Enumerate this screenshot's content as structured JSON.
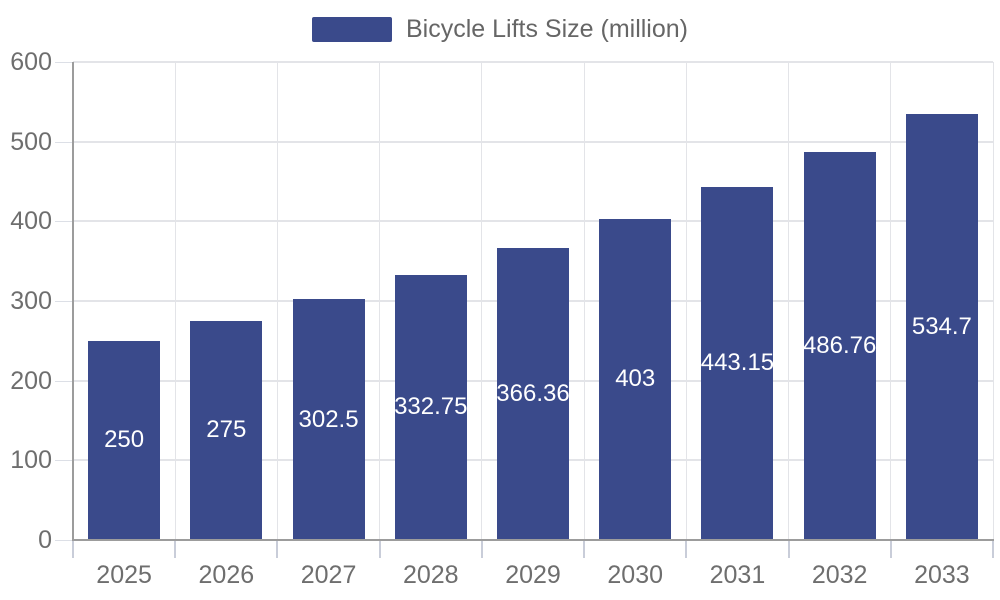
{
  "legend": {
    "label": "Bicycle Lifts Size (million)"
  },
  "chart_data": {
    "type": "bar",
    "title": "",
    "series_name": "Bicycle Lifts Size (million)",
    "categories": [
      "2025",
      "2026",
      "2027",
      "2028",
      "2029",
      "2030",
      "2031",
      "2032",
      "2033"
    ],
    "values": [
      250,
      275,
      302.5,
      332.75,
      366.36,
      403,
      443.15,
      486.76,
      534.7
    ],
    "value_labels": [
      "250",
      "275",
      "302.5",
      "332.75",
      "366.36",
      "403",
      "443.15",
      "486.76",
      "534.7"
    ],
    "xlabel": "",
    "ylabel": "",
    "ylim": [
      0,
      600
    ],
    "ytick_interval": 100,
    "ytick_labels": [
      "0",
      "100",
      "200",
      "300",
      "400",
      "500",
      "600"
    ],
    "grid": true,
    "legend_position": "top-center",
    "bar_value_label_position": "inside-center"
  },
  "colors": {
    "background": "#ffffff",
    "bar": "#3a4a8b",
    "axis_line": "#9c9c9c",
    "grid_line": "#e3e4e8",
    "x_tick": "#c9cdd9",
    "y_tick": "#dcdfe6",
    "axis_label_text": "#6e6e6e",
    "legend_text": "#666666",
    "value_label_text": "#ffffff"
  }
}
